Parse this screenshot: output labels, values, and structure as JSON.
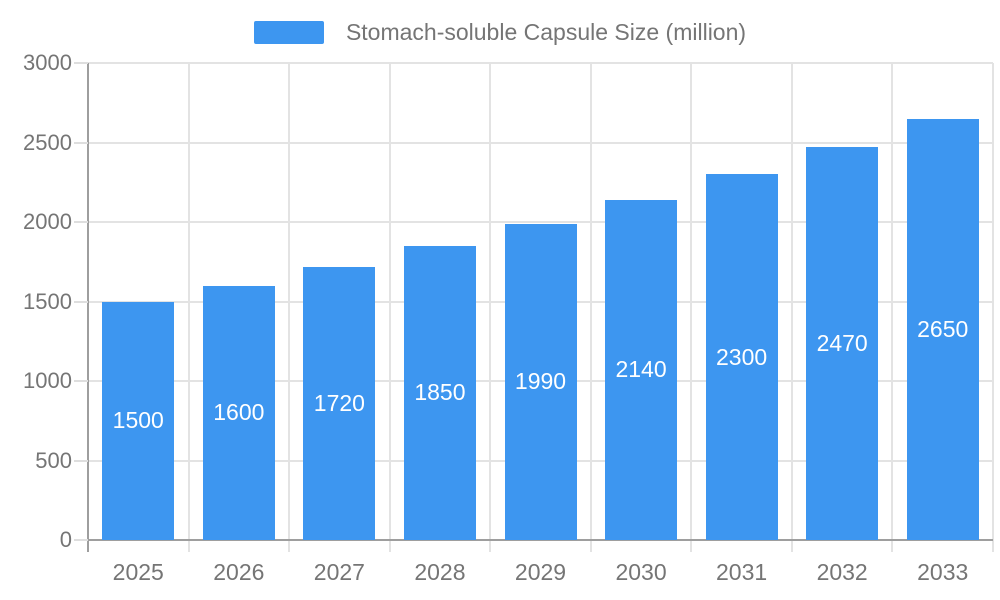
{
  "legend": {
    "label": "Stomach-soluble Capsule Size (million)"
  },
  "chart_data": {
    "type": "bar",
    "title": "",
    "xlabel": "",
    "ylabel": "",
    "categories": [
      "2025",
      "2026",
      "2027",
      "2028",
      "2029",
      "2030",
      "2031",
      "2032",
      "2033"
    ],
    "series": [
      {
        "name": "Stomach-soluble Capsule Size (million)",
        "values": [
          1500,
          1600,
          1720,
          1850,
          1990,
          2140,
          2300,
          2470,
          2650
        ]
      }
    ],
    "ylim": [
      0,
      3000
    ],
    "yticks": [
      0,
      500,
      1000,
      1500,
      2000,
      2500,
      3000
    ],
    "grid": true,
    "legend_position": "top",
    "value_labels_position": "inside-center"
  },
  "colors": {
    "accent": "#3d96f0",
    "axis_text": "#757575",
    "grid_line": "#e3e3e3",
    "axis_line": "#9e9e9e",
    "tick_line": "#dedede",
    "value_label": "#ffffff",
    "background": "#ffffff"
  }
}
